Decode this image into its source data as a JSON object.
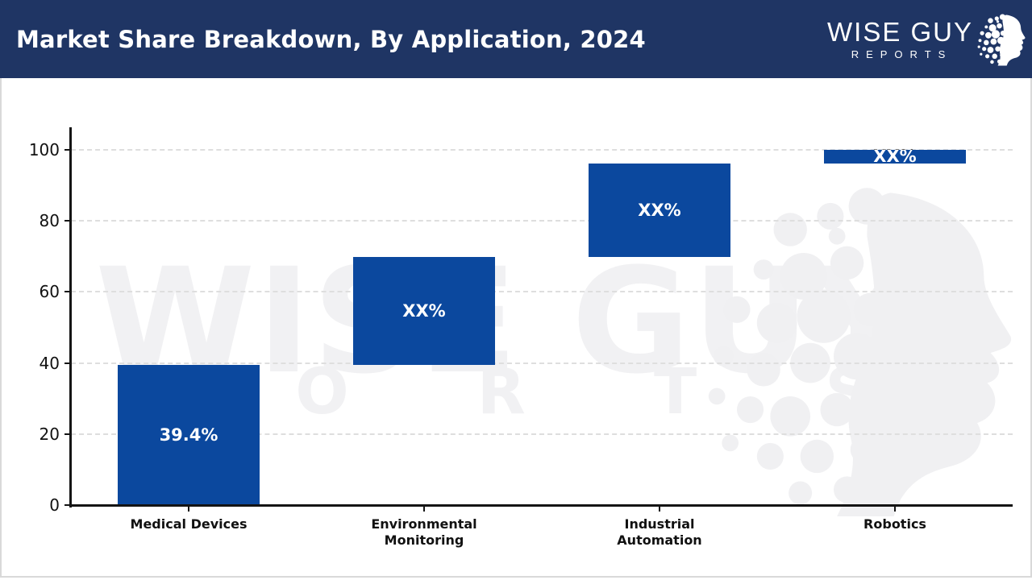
{
  "header": {
    "title": "Market Share Breakdown, By Application, 2024",
    "logo": {
      "line1": "WISE GUY",
      "line2": "REPORTS"
    }
  },
  "watermark": {
    "line1": "WISE GUY",
    "line2": "P O R T S"
  },
  "colors": {
    "header_bg": "#1f3564",
    "bar_blue": "#0b489e",
    "axis": "#141414",
    "gridline": "#dedede",
    "watermark": "#f1f1f3"
  },
  "chart_data": {
    "type": "bar",
    "subtype": "waterfall-floating-bars",
    "title": "Market Share Breakdown, By Application, 2024",
    "x_categories": [
      "Medical Devices",
      "Environmental Monitoring",
      "Industrial Automation",
      "Robotics"
    ],
    "bars": [
      {
        "category_lines": [
          "Medical Devices"
        ],
        "start": 0,
        "end": 39.4,
        "value_label": "39.4%"
      },
      {
        "category_lines": [
          "Environmental",
          "Monitoring"
        ],
        "start": 39.4,
        "end": 69.8,
        "value_label": "XX%"
      },
      {
        "category_lines": [
          "Industrial",
          "Automation"
        ],
        "start": 69.8,
        "end": 96.2,
        "value_label": "XX%"
      },
      {
        "category_lines": [
          "Robotics"
        ],
        "start": 96.2,
        "end": 100,
        "value_label": "XX%"
      }
    ],
    "yticks": [
      0,
      20,
      40,
      60,
      80,
      100
    ],
    "ylim": [
      0,
      106
    ],
    "xlabel": "",
    "ylabel": "",
    "grid": "horizontal-dashed",
    "legend": null,
    "bar_color": "#0b489e",
    "value_label_color_inside": "#ffffff"
  }
}
